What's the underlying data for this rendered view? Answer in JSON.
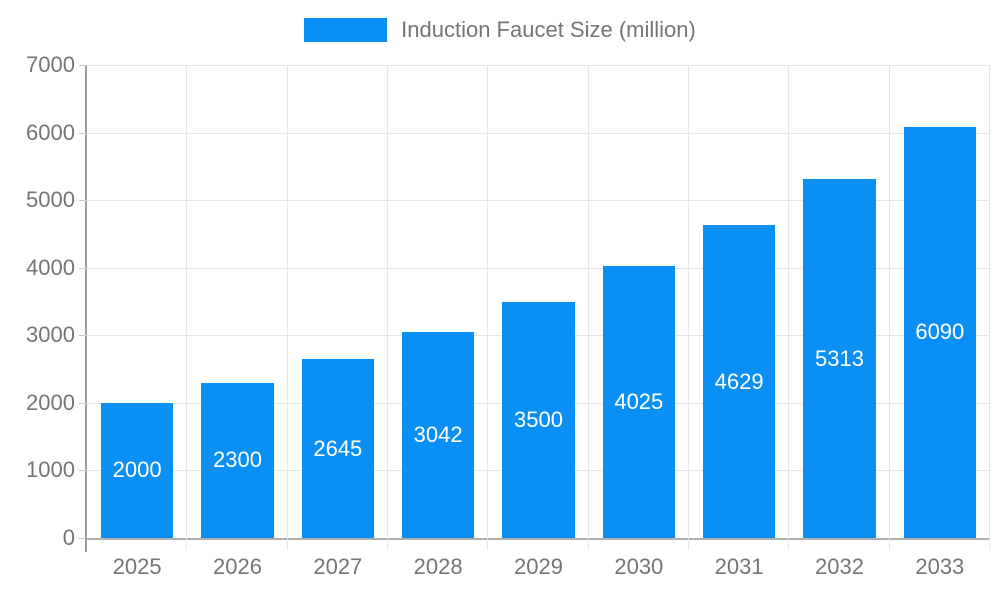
{
  "legend": {
    "label": "Induction Faucet Size (million)"
  },
  "chart_data": {
    "type": "bar",
    "title": "Induction Faucet Size (million)",
    "categories": [
      "2025",
      "2026",
      "2027",
      "2028",
      "2029",
      "2030",
      "2031",
      "2032",
      "2033"
    ],
    "values": [
      2000,
      2300,
      2645,
      3042,
      3500,
      4025,
      4629,
      5313,
      6090
    ],
    "series": [
      {
        "name": "Induction Faucet Size (million)",
        "values": [
          2000,
          2300,
          2645,
          3042,
          3500,
          4025,
          4629,
          5313,
          6090
        ]
      }
    ],
    "xlabel": "",
    "ylabel": "",
    "ylim": [
      0,
      7000
    ],
    "yticks": [
      0,
      1000,
      2000,
      3000,
      4000,
      5000,
      6000,
      7000
    ],
    "grid": true,
    "legend_position": "top",
    "bar_label_position": "inside-center",
    "colors": {
      "bar": "#0a90f5",
      "bar_label": "#ffffff",
      "axis_text": "#757575",
      "gridline": "#e6e6e6",
      "axis_line": "#b0b0b0",
      "y_axis_line": "#9e9e9e",
      "tick": "#c9c9c9"
    }
  }
}
